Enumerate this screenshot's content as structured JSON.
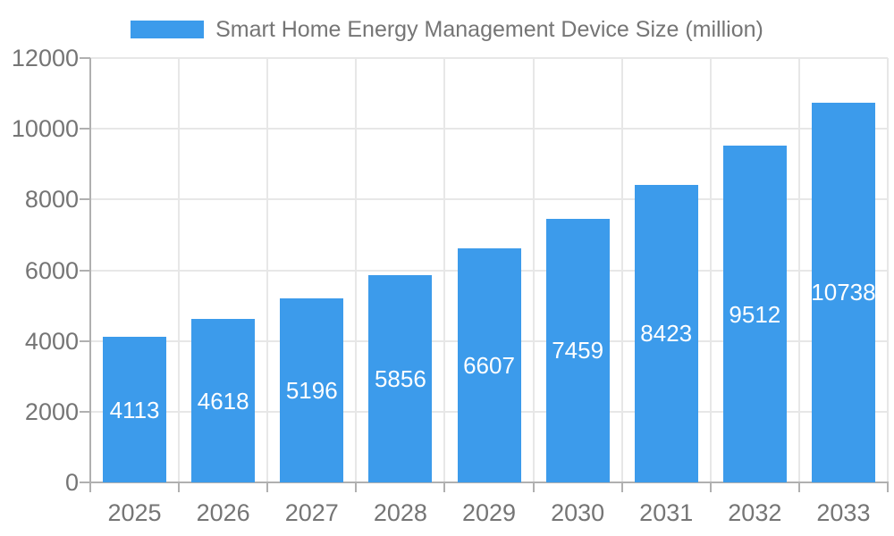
{
  "chart_data": {
    "type": "bar",
    "title": "",
    "legend": {
      "label": "Smart Home Energy Management Device Size (million)",
      "position": "top"
    },
    "categories": [
      "2025",
      "2026",
      "2027",
      "2028",
      "2029",
      "2030",
      "2031",
      "2032",
      "2033"
    ],
    "values": [
      4113,
      4618,
      5196,
      5856,
      6607,
      7459,
      8423,
      9512,
      10738
    ],
    "value_labels": [
      "4113",
      "4618",
      "5196",
      "5856",
      "6607",
      "7459",
      "8423",
      "9512",
      "10738"
    ],
    "xlabel": "",
    "ylabel": "",
    "ylim": [
      0,
      12000
    ],
    "ytick_interval": 2000,
    "ytick_labels": [
      "0",
      "2000",
      "4000",
      "6000",
      "8000",
      "10000",
      "12000"
    ],
    "grid": true,
    "colors": {
      "bar": "#3C9BEB",
      "bar_value_text": "#ffffff",
      "tick_text": "#757575",
      "legend_text": "#757575",
      "grid_line": "#e7e7e7",
      "axis_line": "#b0b0b0",
      "background": "#ffffff"
    }
  }
}
